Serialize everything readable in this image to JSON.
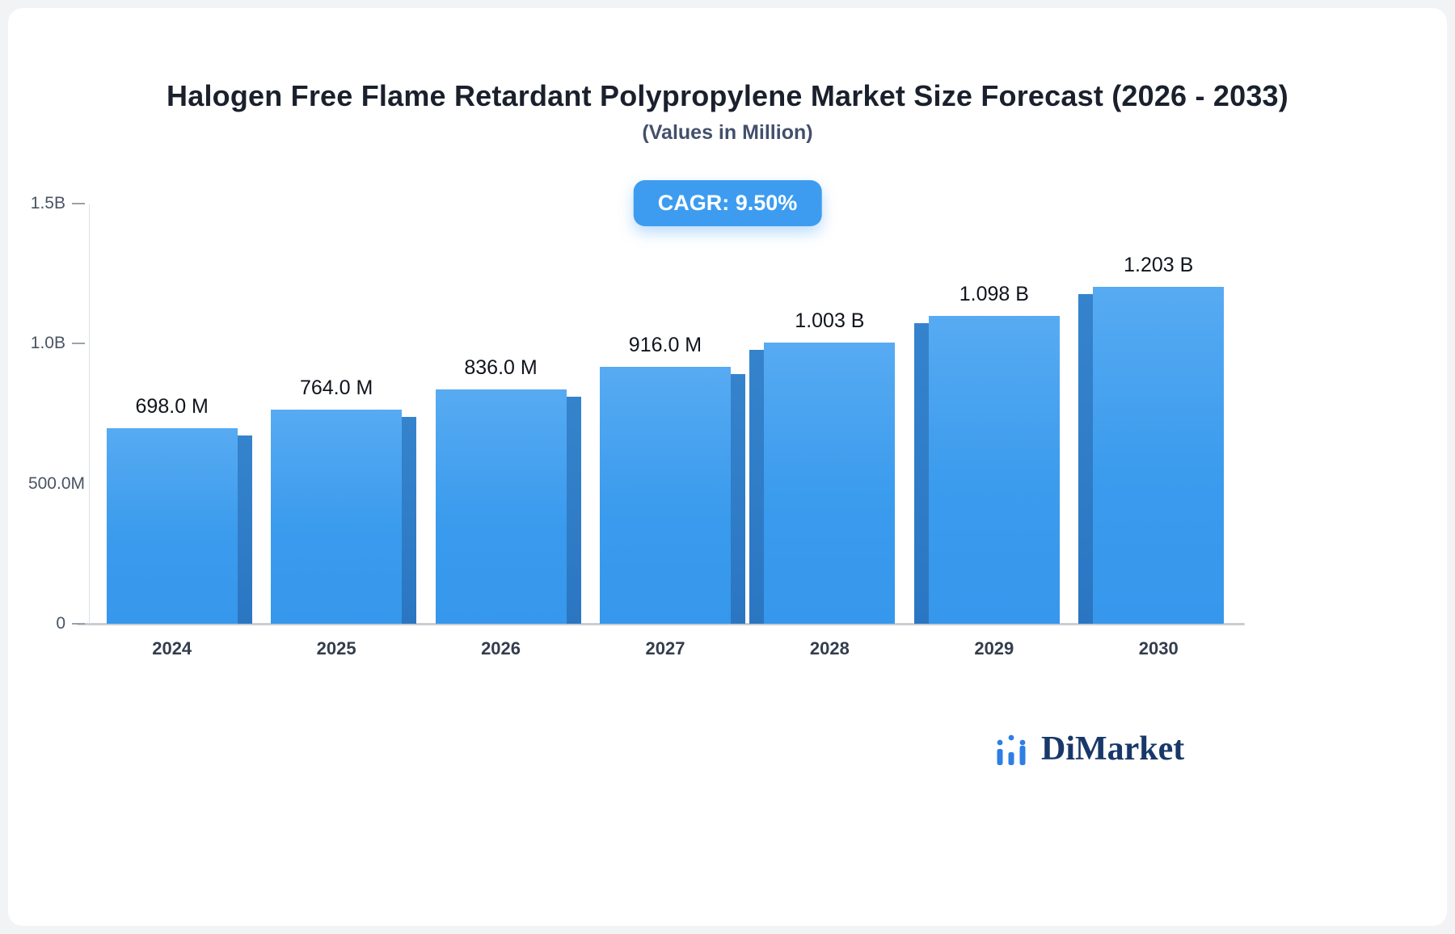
{
  "header": {
    "title": "Halogen Free Flame Retardant Polypropylene Market Size Forecast (2026 - 2033)",
    "subtitle": "(Values in Million)"
  },
  "badge": {
    "label": "CAGR: 9.50%",
    "color": "#3d9cf0"
  },
  "chart_data": {
    "type": "bar",
    "title": "Halogen Free Flame Retardant Polypropylene Market Size Forecast (2026 - 2033)",
    "subtitle": "(Values in Million)",
    "cagr": "CAGR: 9.50%",
    "categories": [
      "2024",
      "2025",
      "2026",
      "2027",
      "2028",
      "2029",
      "2030"
    ],
    "values": [
      698,
      764,
      836,
      916,
      1003,
      1098,
      1203
    ],
    "value_labels": [
      "698.0 M",
      "764.0 M",
      "836.0 M",
      "916.0 M",
      "1.003 B",
      "1.098 B",
      "1.203 B"
    ],
    "unit_scale": "millions",
    "ylim": [
      0,
      1500
    ],
    "y_ticks": [
      {
        "label": "1.5B",
        "value": 1500,
        "dash": true
      },
      {
        "label": "1.0B",
        "value": 1000,
        "dash": true
      },
      {
        "label": "500.0M",
        "value": 500,
        "dash": false
      },
      {
        "label": "0",
        "value": 0,
        "dash": true
      }
    ],
    "grid": false,
    "legend": "none",
    "bar_color_top": "#57abf2",
    "bar_color_bottom": "#3697ec",
    "bar_side_color": "#2b76c2"
  },
  "logo": {
    "text": "DiMarket",
    "icon": "bar-chart-dots-icon",
    "icon_color": "#2e7fe3",
    "text_color": "#18386a"
  }
}
